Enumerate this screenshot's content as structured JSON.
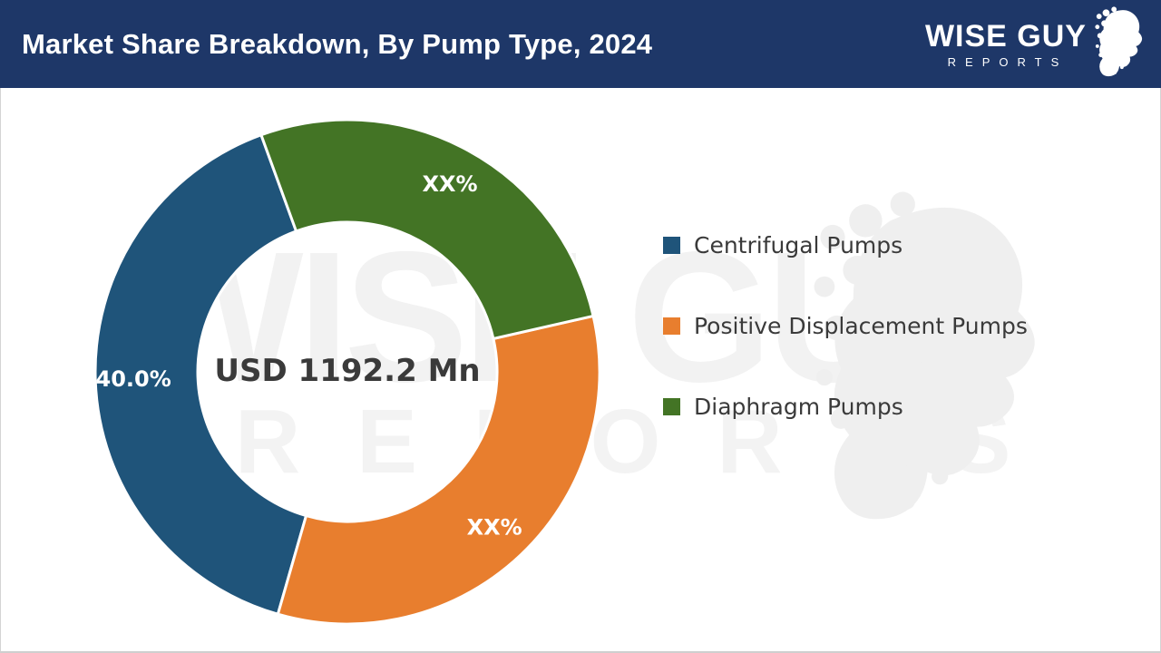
{
  "header": {
    "title": "Market Share Breakdown, By Pump Type, 2024",
    "background": "#1e3768",
    "logo": {
      "line1": "WISE GUY",
      "line2": "REPORTS"
    }
  },
  "watermark": {
    "line1": "WISE GUY",
    "line2": "REPORTS"
  },
  "chart_data": {
    "type": "pie",
    "subtype": "donut",
    "title": "Market Share Breakdown, By Pump Type, 2024",
    "center_label": "USD 1192.2 Mn",
    "start_angle_deg": 110,
    "direction": "counterclockwise",
    "legend_position": "right",
    "outer_radius_px": 278,
    "inner_radius_px": 165,
    "label_radius_px": 236,
    "slices": [
      {
        "label": "Centrifugal Pumps",
        "display_pct": "40.0%",
        "value_pct": 40.0,
        "color": "#1f547a"
      },
      {
        "label": "Positive Displacement Pumps",
        "display_pct": "XX%",
        "value_pct": 33.0,
        "color": "#e87e2e"
      },
      {
        "label": "Diaphragm Pumps",
        "display_pct": "XX%",
        "value_pct": 27.0,
        "color": "#437425"
      }
    ],
    "colors": {
      "slice_label_text": "#ffffff",
      "center_text": "#3a3a3a",
      "legend_text": "#3a3a3a"
    }
  }
}
